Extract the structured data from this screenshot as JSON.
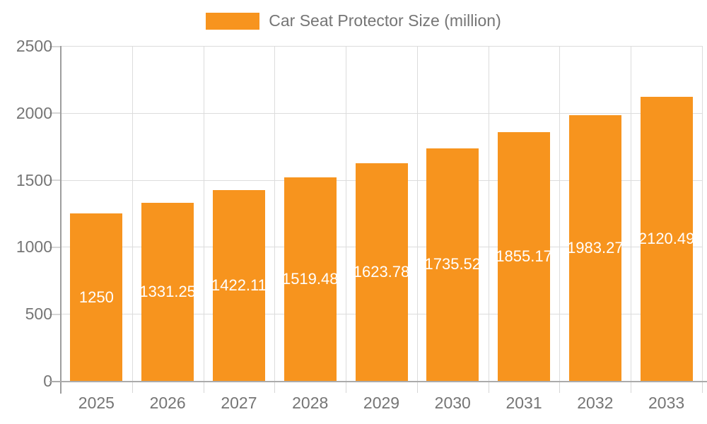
{
  "chart_data": {
    "type": "bar",
    "title": "Car Seat Protector Size (million)",
    "legend_position": "top",
    "categories": [
      "2025",
      "2026",
      "2027",
      "2028",
      "2029",
      "2030",
      "2031",
      "2032",
      "2033"
    ],
    "series": [
      {
        "name": "Car Seat Protector Size (million)",
        "color": "#F7941E",
        "values": [
          1250,
          1331.25,
          1422.11,
          1519.48,
          1623.78,
          1735.52,
          1855.17,
          1983.27,
          2120.49
        ],
        "value_labels": [
          "1250",
          "1331.25",
          "1422.11",
          "1519.48",
          "1623.78",
          "1735.52",
          "1855.17",
          "1983.27",
          "2120.49"
        ]
      }
    ],
    "xlabel": "",
    "ylabel": "",
    "ylim": [
      0,
      2500
    ],
    "ytick_interval": 500,
    "yticks": [
      "0",
      "500",
      "1000",
      "1500",
      "2000",
      "2500"
    ],
    "grid": true,
    "value_label_color": "#FFFFFF",
    "axis_text_color": "#757575"
  }
}
